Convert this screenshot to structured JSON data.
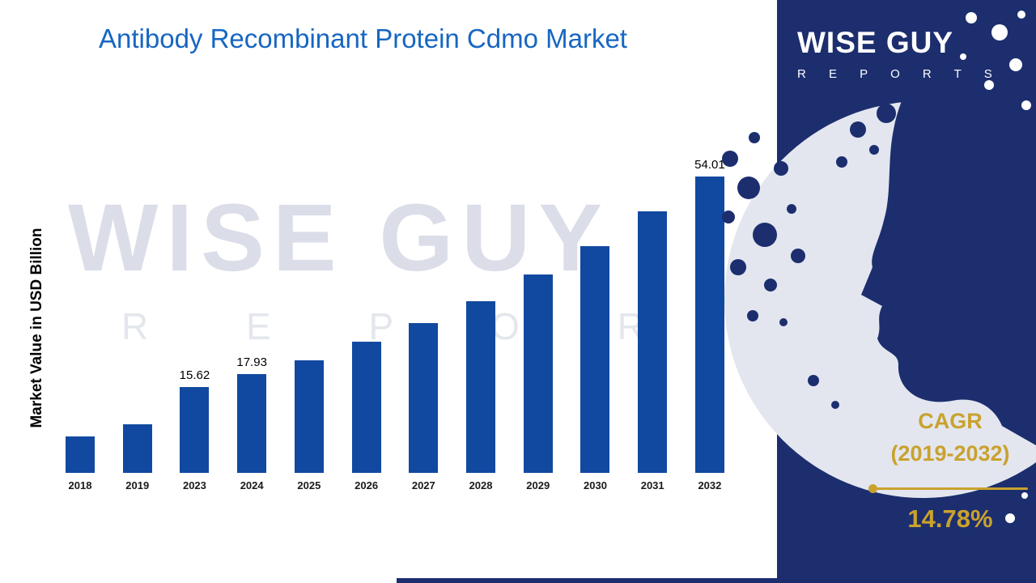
{
  "header": {
    "title": "Antibody Recombinant Protein Cdmo Market"
  },
  "watermark": {
    "line1": "WISE GUY",
    "line2": "R E P O R T S"
  },
  "brand": {
    "name_line": "WISE GUY",
    "reports_line": "R E P O R T S"
  },
  "cagr": {
    "label": "CAGR",
    "range": "(2019-2032)",
    "value": "14.78%"
  },
  "chart_data": {
    "type": "bar",
    "title": "Antibody Recombinant Protein Cdmo Market",
    "xlabel": "",
    "ylabel": "Market Value in USD Billion",
    "categories": [
      "2018",
      "2019",
      "2023",
      "2024",
      "2025",
      "2026",
      "2027",
      "2028",
      "2029",
      "2030",
      "2031",
      "2032"
    ],
    "values": [
      6.7,
      8.9,
      15.62,
      17.93,
      20.5,
      23.8,
      27.2,
      31.3,
      36.1,
      41.3,
      47.6,
      54.01
    ],
    "data_labels": [
      "",
      "",
      "15.62",
      "17.93",
      "",
      "",
      "",
      "",
      "",
      "",
      "",
      "54.01"
    ],
    "ylim": [
      0,
      56
    ],
    "grid": false,
    "legend": "none",
    "bar_color": "#1149a0"
  },
  "colors": {
    "panel_navy": "#1c2e6e",
    "bar_blue": "#1149a0",
    "title_blue": "#1766c2",
    "gold": "#c9a22e",
    "circle_gray": "#e3e6ef"
  }
}
